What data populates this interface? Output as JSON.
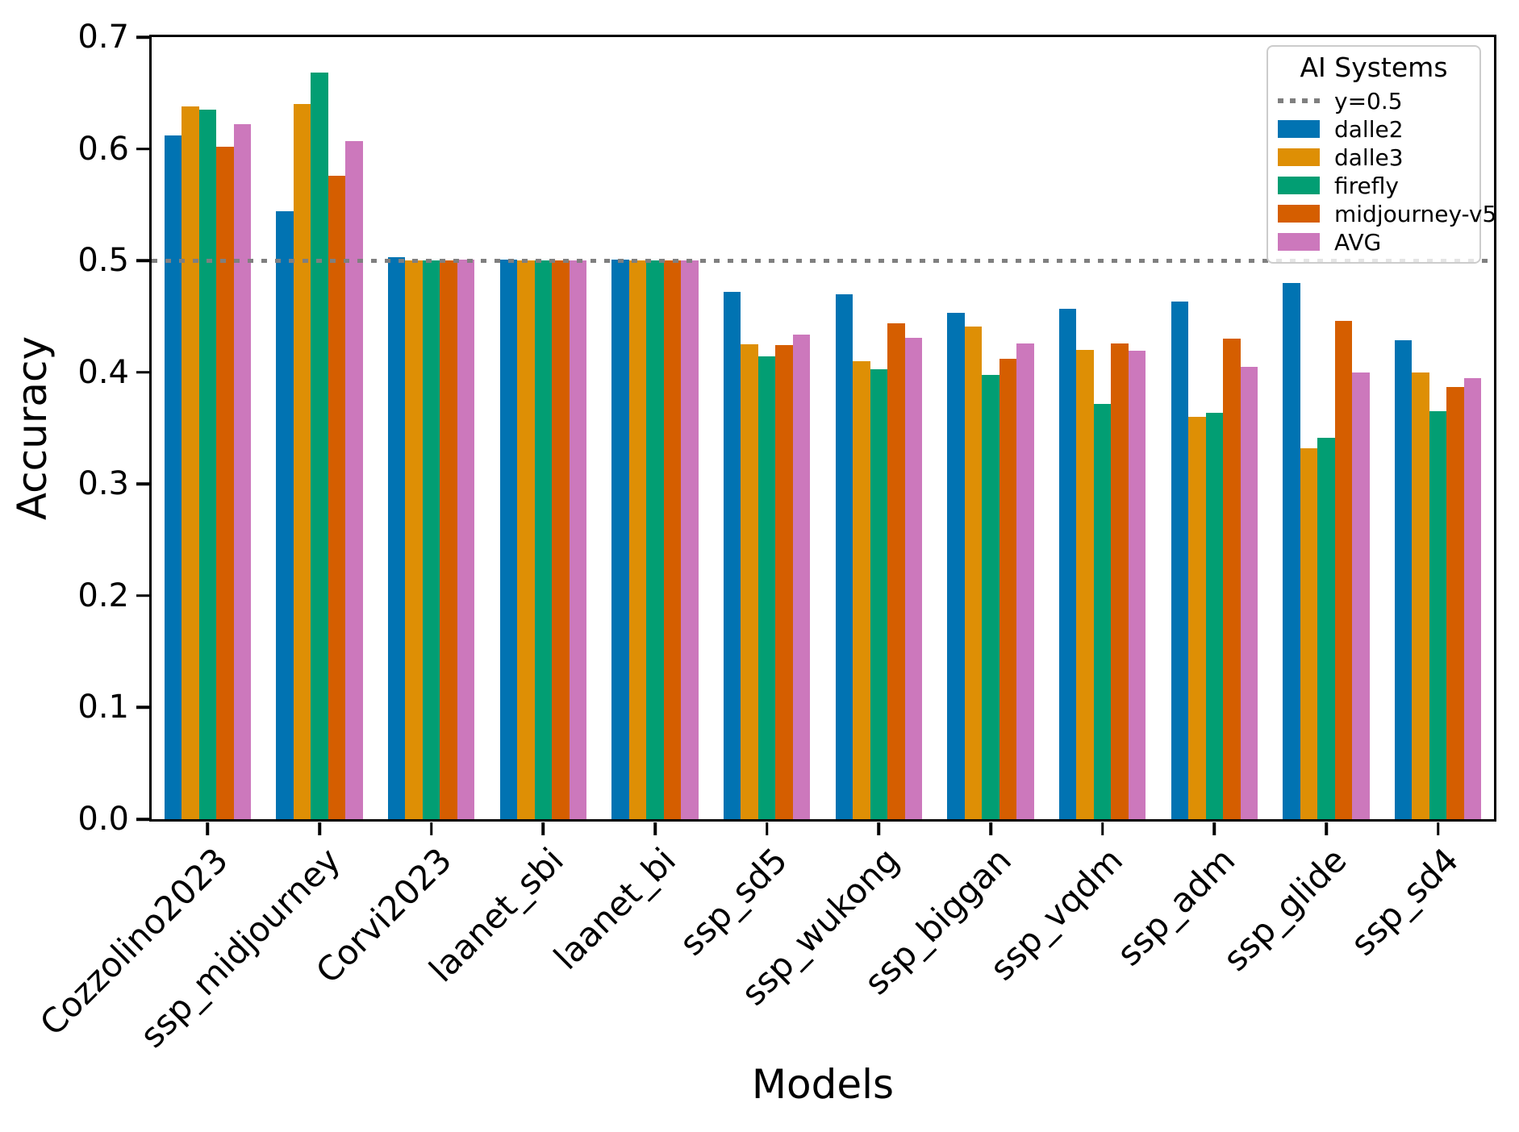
{
  "chart_data": {
    "type": "bar",
    "title": "",
    "xlabel": "Models",
    "ylabel": "Accuracy",
    "legend_title": "AI Systems",
    "legend_position": "upper right",
    "grid": false,
    "ylim": [
      0.0,
      0.7
    ],
    "ytick_labels": [
      "0.0",
      "0.1",
      "0.2",
      "0.3",
      "0.4",
      "0.5",
      "0.6",
      "0.7"
    ],
    "categories": [
      "Cozzolino2023",
      "ssp_midjourney",
      "Corvi2023",
      "laanet_sbi",
      "laanet_bi",
      "ssp_sd5",
      "ssp_wukong",
      "ssp_biggan",
      "ssp_vqdm",
      "ssp_adm",
      "ssp_glide",
      "ssp_sd4"
    ],
    "threshold": {
      "label": "y=0.5",
      "value": 0.5,
      "color": "#7f7f7f",
      "style": "dotted"
    },
    "series": [
      {
        "name": "dalle2",
        "color": "#0173b2",
        "values": [
          0.612,
          0.544,
          0.503,
          0.501,
          0.501,
          0.472,
          0.47,
          0.453,
          0.457,
          0.463,
          0.48,
          0.429
        ]
      },
      {
        "name": "dalle3",
        "color": "#de8f05",
        "values": [
          0.638,
          0.64,
          0.5,
          0.5,
          0.5,
          0.425,
          0.41,
          0.441,
          0.42,
          0.36,
          0.332,
          0.4
        ]
      },
      {
        "name": "firefly",
        "color": "#029e73",
        "values": [
          0.635,
          0.668,
          0.5,
          0.5,
          0.5,
          0.414,
          0.403,
          0.398,
          0.372,
          0.364,
          0.341,
          0.365
        ]
      },
      {
        "name": "midjourney-v5",
        "color": "#d55e00",
        "values": [
          0.602,
          0.576,
          0.5,
          0.5,
          0.5,
          0.424,
          0.444,
          0.412,
          0.426,
          0.43,
          0.446,
          0.387
        ]
      },
      {
        "name": "AVG",
        "color": "#cc78bc",
        "values": [
          0.622,
          0.607,
          0.501,
          0.5,
          0.5,
          0.434,
          0.431,
          0.426,
          0.419,
          0.405,
          0.4,
          0.395
        ]
      }
    ]
  }
}
